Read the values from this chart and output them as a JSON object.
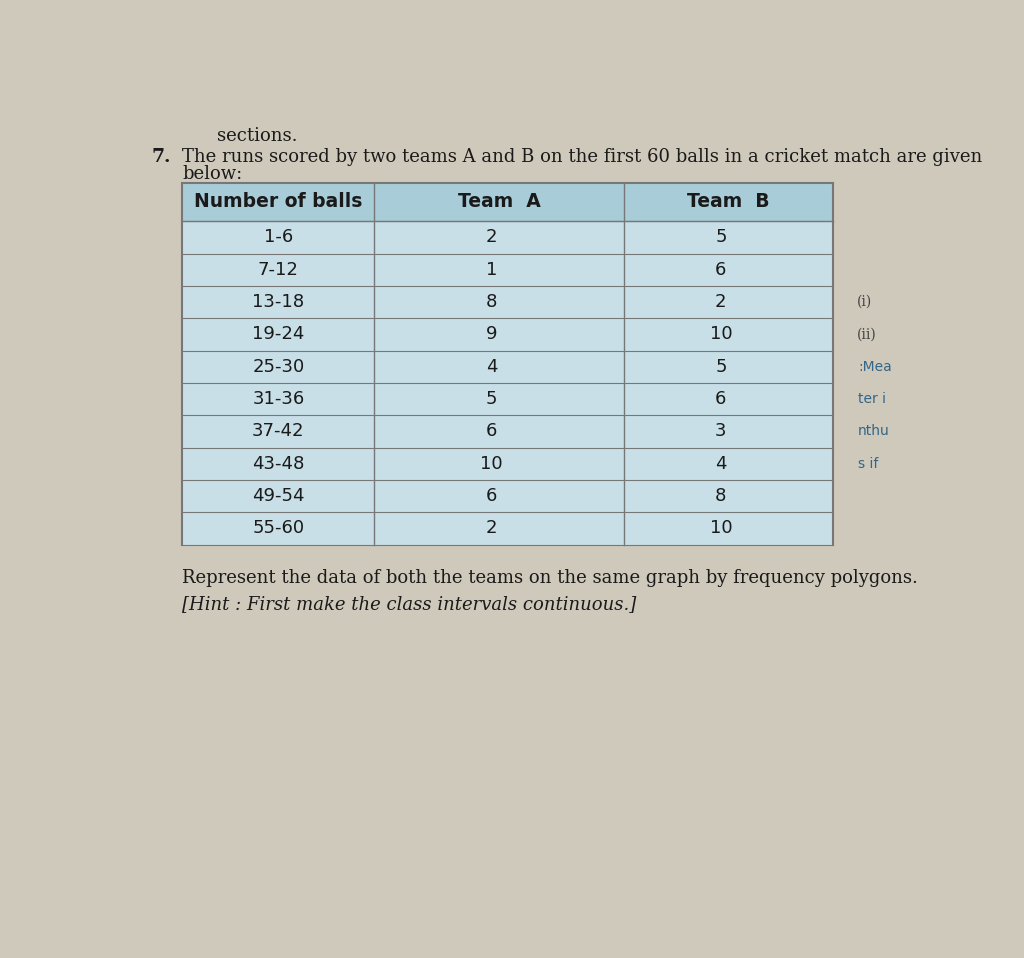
{
  "title_number": "7.",
  "section_header": "sections.",
  "title_line1": "The runs scored by two teams A and B on the first 60 balls in a cricket match are given",
  "title_line2": "below:",
  "col_headers": [
    "Number of balls",
    "Team  A",
    "Team  B"
  ],
  "rows": [
    [
      "1-6",
      "2",
      "5"
    ],
    [
      "7-12",
      "1",
      "6"
    ],
    [
      "13-18",
      "8",
      "2"
    ],
    [
      "19-24",
      "9",
      "10"
    ],
    [
      "25-30",
      "4",
      "5"
    ],
    [
      "31-36",
      "5",
      "6"
    ],
    [
      "37-42",
      "6",
      "3"
    ],
    [
      "43-48",
      "10",
      "4"
    ],
    [
      "49-54",
      "6",
      "8"
    ],
    [
      "55-60",
      "2",
      "10"
    ]
  ],
  "footer_line1": "Represent the data of both the teams on the same graph by frequency polygons.",
  "footer_line2": "[Hint : First make the class intervals continuous.]",
  "bg_color": "#c8dfe8",
  "page_bg": "#cfc9bb",
  "header_bg": "#a8ccd8",
  "table_border": "#777777",
  "text_color": "#1a1a1a",
  "side_notes": [
    "(i)",
    "(ii)"
  ],
  "side_note_colors": [
    "#444444",
    "#444444"
  ],
  "right_texts": [
    ":Mea",
    "ter i",
    "nthu",
    "s if"
  ],
  "right_text_color": "#336688"
}
